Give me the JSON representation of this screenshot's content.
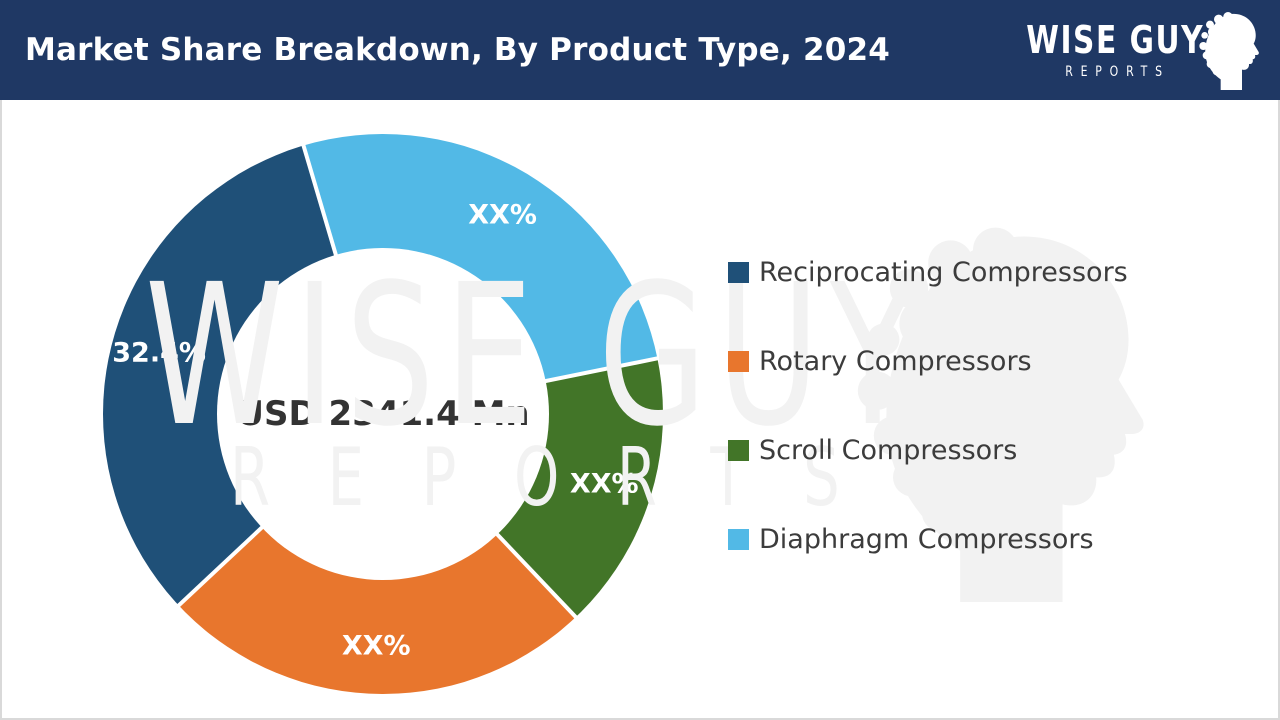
{
  "header": {
    "title": "Market Share Breakdown, By Product Type, 2024"
  },
  "logo": {
    "line1": "WISE GUY",
    "line2": "REPORTS"
  },
  "watermark": {
    "line1": "WISE GUY",
    "line2": "REPORTS"
  },
  "chart_data": {
    "type": "pie",
    "subtype": "donut",
    "title": "Market Share Breakdown, By Product Type, 2024",
    "center_label": "USD 2341.4 Mn",
    "start_angle_deg": 106.5,
    "direction": "counterclockwise",
    "legend_position": "right",
    "series": [
      {
        "name": "Reciprocating Compressors",
        "value_pct": 32.4,
        "display_label": "32.4%",
        "color": "#1f5078"
      },
      {
        "name": "Rotary Compressors",
        "value_pct": 25.1,
        "display_label": "XX%",
        "color": "#e8762d"
      },
      {
        "name": "Scroll Compressors",
        "value_pct": 16.1,
        "display_label": "XX%",
        "color": "#427528"
      },
      {
        "name": "Diaphragm Compressors",
        "value_pct": 26.4,
        "display_label": "XX%",
        "color": "#52b9e6"
      }
    ]
  }
}
